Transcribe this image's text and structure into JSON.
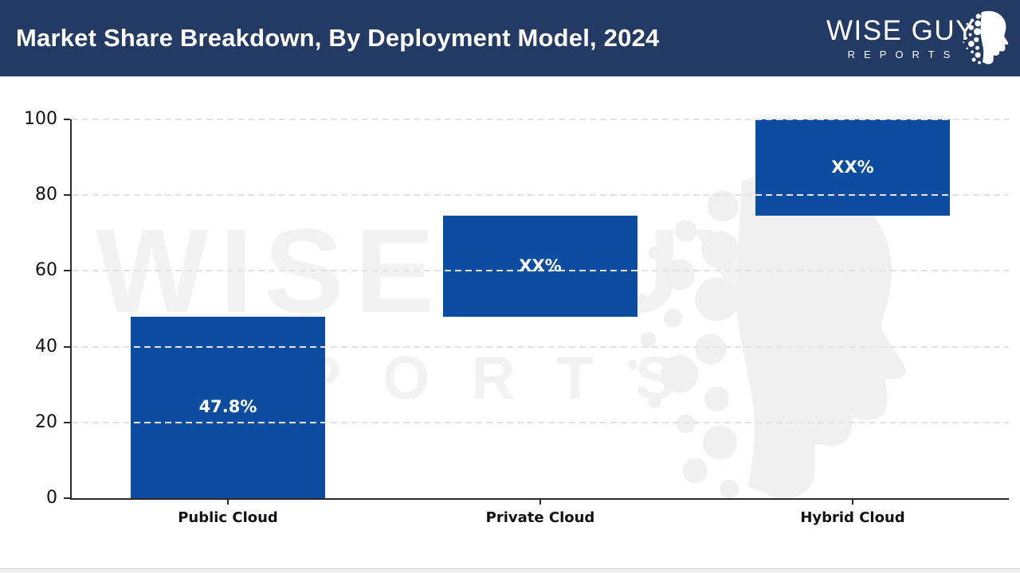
{
  "header": {
    "title": "Market Share Breakdown, By Deployment Model, 2024",
    "logo": {
      "primary": "WISE GUY",
      "secondary": "REPORTS"
    }
  },
  "watermark": {
    "primary": "WISE GUY",
    "secondary": "REPORTS"
  },
  "chart_data": {
    "type": "bar",
    "variant": "floating-segment-breakdown",
    "title": "Market Share Breakdown, By Deployment Model, 2024",
    "categories": [
      "Public Cloud",
      "Private Cloud",
      "Hybrid Cloud"
    ],
    "segments": [
      {
        "category": "Public Cloud",
        "start": 0,
        "end": 47.8,
        "value": 47.8,
        "label": "47.8%"
      },
      {
        "category": "Private Cloud",
        "start": 47.8,
        "end": 74.5,
        "value": 26.7,
        "label": "XX%"
      },
      {
        "category": "Hybrid Cloud",
        "start": 74.5,
        "end": 100,
        "value": 25.5,
        "label": "XX%"
      }
    ],
    "xlabel": "",
    "ylabel": "",
    "ylim": [
      0,
      100
    ],
    "yticks": [
      0,
      20,
      40,
      60,
      80,
      100
    ],
    "grid": "horizontal-dashed",
    "legend": "none",
    "bar_color": "#0C4DA2",
    "bar_label_color": "#FFFFFF"
  },
  "colors": {
    "header_bg": "#223A64",
    "header_text": "#FFFFFF",
    "page_bg": "#FFFFFF",
    "axis": "#2A2A2A",
    "grid": "#E3E3E3",
    "watermark": "#F1F1F1"
  }
}
